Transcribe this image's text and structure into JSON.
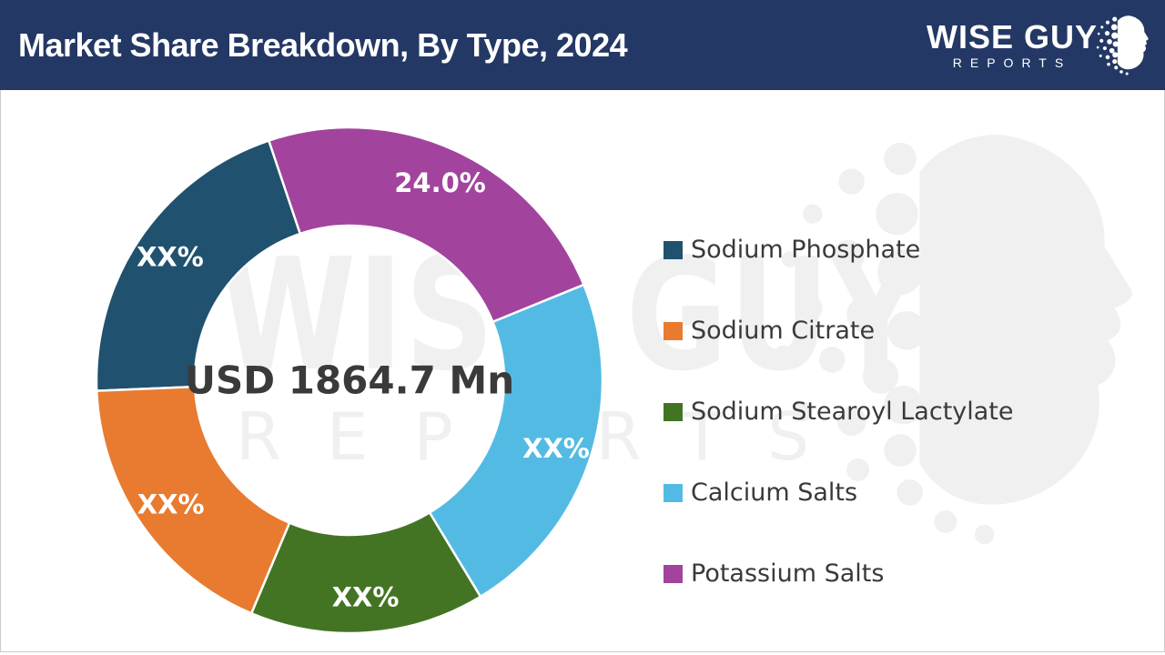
{
  "header": {
    "title": "Market Share Breakdown, By Type, 2024",
    "logo": {
      "wordmark": "WISE GUY",
      "tagline": "REPORTS"
    }
  },
  "watermark": {
    "wordmark": "WISE GUY",
    "tagline": "REPORTS"
  },
  "colors": {
    "header_background": "#243865",
    "card_border": "#CBCBCB",
    "center_text": "#3A3A3A",
    "legend_text": "#3A3A3A",
    "segment_label_text": "#FFFFFF",
    "watermark": "#F0F0F1"
  },
  "chart_data": {
    "type": "pie",
    "subtype": "donut",
    "title": "Market Share Breakdown, By Type, 2024",
    "center_label": "USD 1864.7 Mn",
    "legend_position": "right",
    "start_angle_deg": 108.6,
    "direction": "counterclockwise",
    "inner_radius_ratio": 0.61,
    "segments": [
      {
        "label": "Sodium Phosphate",
        "color": "#20516F",
        "displayed_value": "XX%",
        "estimated_share_pct": 20.5
      },
      {
        "label": "Sodium Citrate",
        "color": "#E87B2F",
        "displayed_value": "XX%",
        "estimated_share_pct": 18.0
      },
      {
        "label": "Sodium Stearoyl Lactylate",
        "color": "#437423",
        "displayed_value": "XX%",
        "estimated_share_pct": 15.0
      },
      {
        "label": "Calcium Salts",
        "color": "#53BBE3",
        "displayed_value": "XX%",
        "estimated_share_pct": 22.5
      },
      {
        "label": "Potassium Salts",
        "color": "#A2449D",
        "displayed_value": "24.0%",
        "estimated_share_pct": 24.0
      }
    ]
  }
}
